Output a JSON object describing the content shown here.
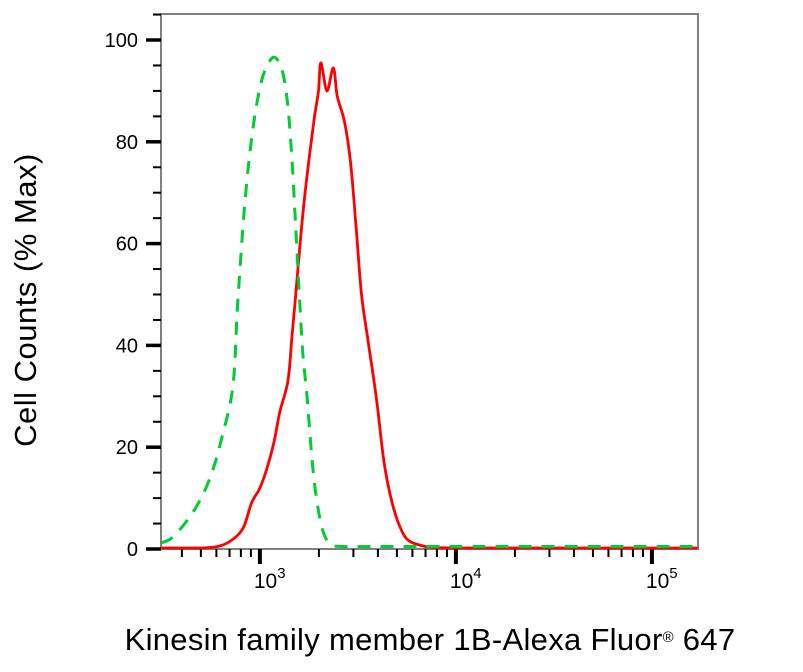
{
  "labels": {
    "ylabel": "Cell Counts (% Max)",
    "xlabel_main": "Kinesin family member 1B-Alexa Fluor",
    "xlabel_sup": "®",
    "xlabel_end": " 647"
  },
  "chart_data": {
    "type": "line",
    "subtype": "flow-cytometry-histogram-overlay",
    "title": "",
    "xlabel": "Kinesin family member 1B-Alexa Fluor® 647",
    "ylabel": "Cell Counts (% Max)",
    "grid": false,
    "legend": "none",
    "frame_color": "#808080",
    "tick_color": "#000000",
    "x_scale": "log10",
    "x_axis": {
      "min": 313,
      "max": 171800,
      "major_ticks": [
        {
          "value": 1000,
          "base": "10",
          "exp": "3"
        },
        {
          "value": 10000,
          "base": "10",
          "exp": "4"
        },
        {
          "value": 100000,
          "base": "10",
          "exp": "5"
        }
      ],
      "minor_ticks": "log decades 2-9"
    },
    "y_axis": {
      "min": 0,
      "max": 105,
      "major_ticks": [
        0,
        20,
        40,
        60,
        80,
        100
      ],
      "minor_step": 5
    },
    "series": [
      {
        "name": "red-solid",
        "style": "solid",
        "color": "#FF0000",
        "peak_x": 2050,
        "peak_y": 95.5,
        "points": [
          [
            313,
            0.2
          ],
          [
            500,
            0.2
          ],
          [
            610,
            0.5
          ],
          [
            703,
            1.5
          ],
          [
            819,
            4
          ],
          [
            906,
            9
          ],
          [
            1000,
            12
          ],
          [
            1090,
            16
          ],
          [
            1180,
            21
          ],
          [
            1265,
            27
          ],
          [
            1390,
            33
          ],
          [
            1460,
            42
          ],
          [
            1540,
            52
          ],
          [
            1620,
            62
          ],
          [
            1700,
            70
          ],
          [
            1800,
            78
          ],
          [
            1900,
            85
          ],
          [
            1990,
            90
          ],
          [
            2048,
            95.5
          ],
          [
            2198,
            90
          ],
          [
            2370,
            94.5
          ],
          [
            2480,
            89
          ],
          [
            2700,
            84
          ],
          [
            2900,
            76
          ],
          [
            3100,
            63
          ],
          [
            3300,
            50
          ],
          [
            3560,
            41
          ],
          [
            3950,
            29
          ],
          [
            4300,
            17
          ],
          [
            4770,
            8.5
          ],
          [
            5300,
            3.5
          ],
          [
            5820,
            1.5
          ],
          [
            6800,
            0.6
          ],
          [
            7600,
            0.3
          ],
          [
            12000,
            0.2
          ],
          [
            40000,
            0.2
          ],
          [
            100000,
            0.2
          ],
          [
            171000,
            0.2
          ]
        ]
      },
      {
        "name": "green-dashed",
        "style": "dashed",
        "color": "#00CC33",
        "peak_x": 1190,
        "peak_y": 96.6,
        "points": [
          [
            313,
            1.2
          ],
          [
            350,
            2
          ],
          [
            414,
            5
          ],
          [
            494,
            9.5
          ],
          [
            569,
            15
          ],
          [
            641,
            22
          ],
          [
            728,
            32
          ],
          [
            770,
            48
          ],
          [
            830,
            66
          ],
          [
            890,
            78
          ],
          [
            950,
            86
          ],
          [
            1020,
            92
          ],
          [
            1100,
            95.3
          ],
          [
            1190,
            96.6
          ],
          [
            1300,
            94
          ],
          [
            1380,
            88
          ],
          [
            1450,
            78
          ],
          [
            1520,
            64
          ],
          [
            1600,
            48
          ],
          [
            1660,
            38
          ],
          [
            1740,
            30
          ],
          [
            1850,
            17
          ],
          [
            1960,
            9
          ],
          [
            2100,
            3.5
          ],
          [
            2280,
            1
          ],
          [
            2600,
            0.5
          ],
          [
            4000,
            0.5
          ],
          [
            8000,
            0.5
          ],
          [
            20000,
            0.5
          ],
          [
            60000,
            0.5
          ],
          [
            171000,
            0.5
          ]
        ]
      }
    ]
  }
}
